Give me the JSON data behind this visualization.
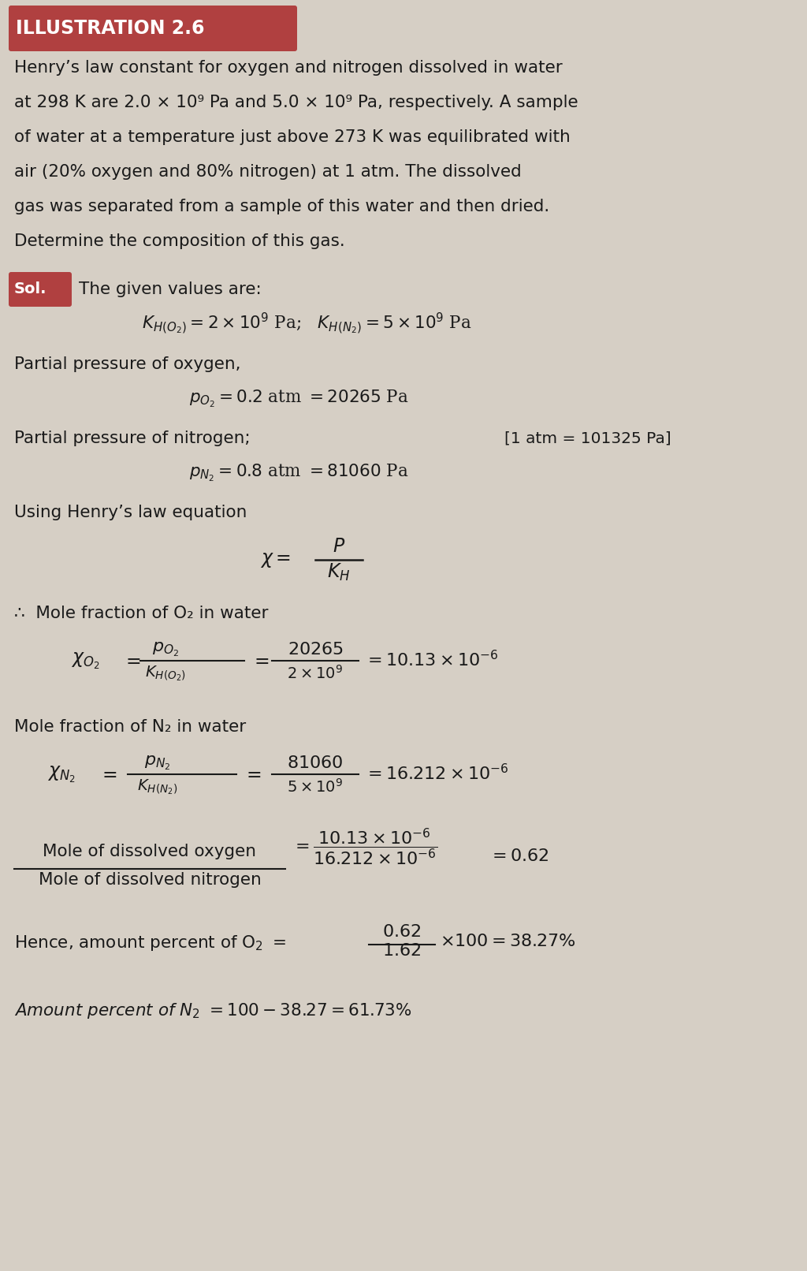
{
  "bg_color": "#d6cfc5",
  "title_box_color": "#b04040",
  "title_text": "ILLUSTRATION 2.6",
  "title_color": "#ffffff",
  "sol_box_color": "#b04040",
  "sol_text": "Sol.",
  "sol_text_color": "#ffffff",
  "body_text_color": "#1a1a1a",
  "para1_line1": "Henry’s law constant for oxygen and nitrogen dissolved in water",
  "para1_line2": "at 298 K are 2.0 × 10⁹ Pa and 5.0 × 10⁹ Pa, respectively. A sample",
  "para1_line3": "of water at a temperature just above 273 K was equilibrated with",
  "para1_line4": "air (20% oxygen and 80% nitrogen) at 1 atm. The dissolved",
  "para1_line5": "gas was separated from a sample of this water and then dried.",
  "para1_line6": "Determine the composition of this gas.",
  "sol_given": "The given values are:",
  "partial_o2_label": "Partial pressure of oxygen,",
  "partial_n2_label": "Partial pressure of nitrogen;",
  "partial_n2_note": "[1 atm = 101325 Pa]",
  "henry_label": "Using Henry’s law equation",
  "mole_o2_label": "∴  Mole fraction of O₂ in water",
  "mole_n2_label": "Mole fraction of N₂ in water",
  "ratio_num": "Mole of dissolved oxygen",
  "ratio_den": "Mole of dissolved nitrogen",
  "hence_line": "Hence, amount percent of O₂ =",
  "amount_n2_line": "Amount percent of N₂ = 100 – 38.27 = 61.73%"
}
